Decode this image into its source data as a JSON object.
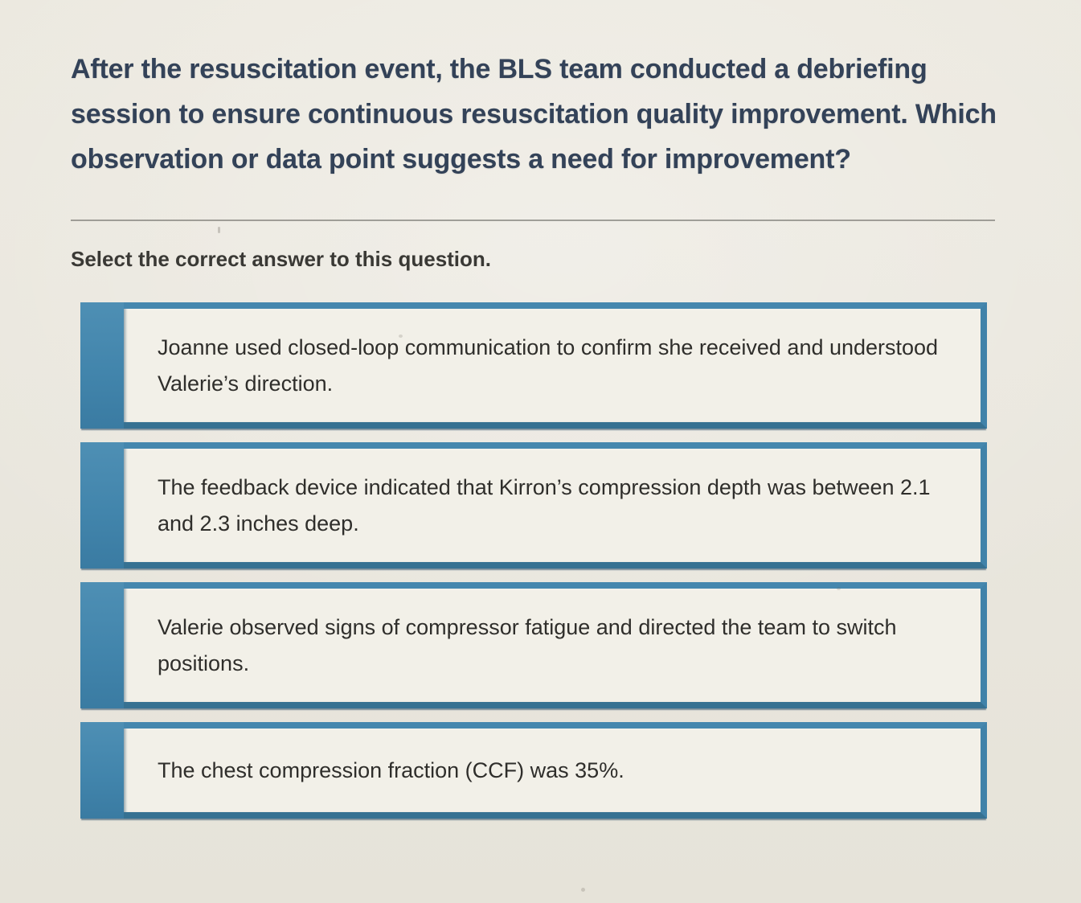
{
  "question": {
    "title": "After the resuscitation event, the BLS team conducted a debriefing session to ensure continuous resuscitation quality improvement. Which observation or data point suggests a need for improvement?",
    "prompt": "Select the correct answer to this question."
  },
  "options": [
    {
      "text": "Joanne used closed-loop communication to confirm she received and understood Valerie’s direction."
    },
    {
      "text": "The feedback device indicated that Kirron’s compression depth was between 2.1 and 2.3 inches deep."
    },
    {
      "text": "Valerie observed signs of compressor fatigue and directed the team to switch positions."
    },
    {
      "text": "The chest compression fraction (CCF) was 35%."
    }
  ],
  "colors": {
    "accent_blue": "#4285ac",
    "title_navy": "#334258",
    "page_background": "#e9e6dd",
    "option_background": "#f2f0e8",
    "body_text": "#2f2e2b",
    "divider_gray": "#918f89"
  }
}
